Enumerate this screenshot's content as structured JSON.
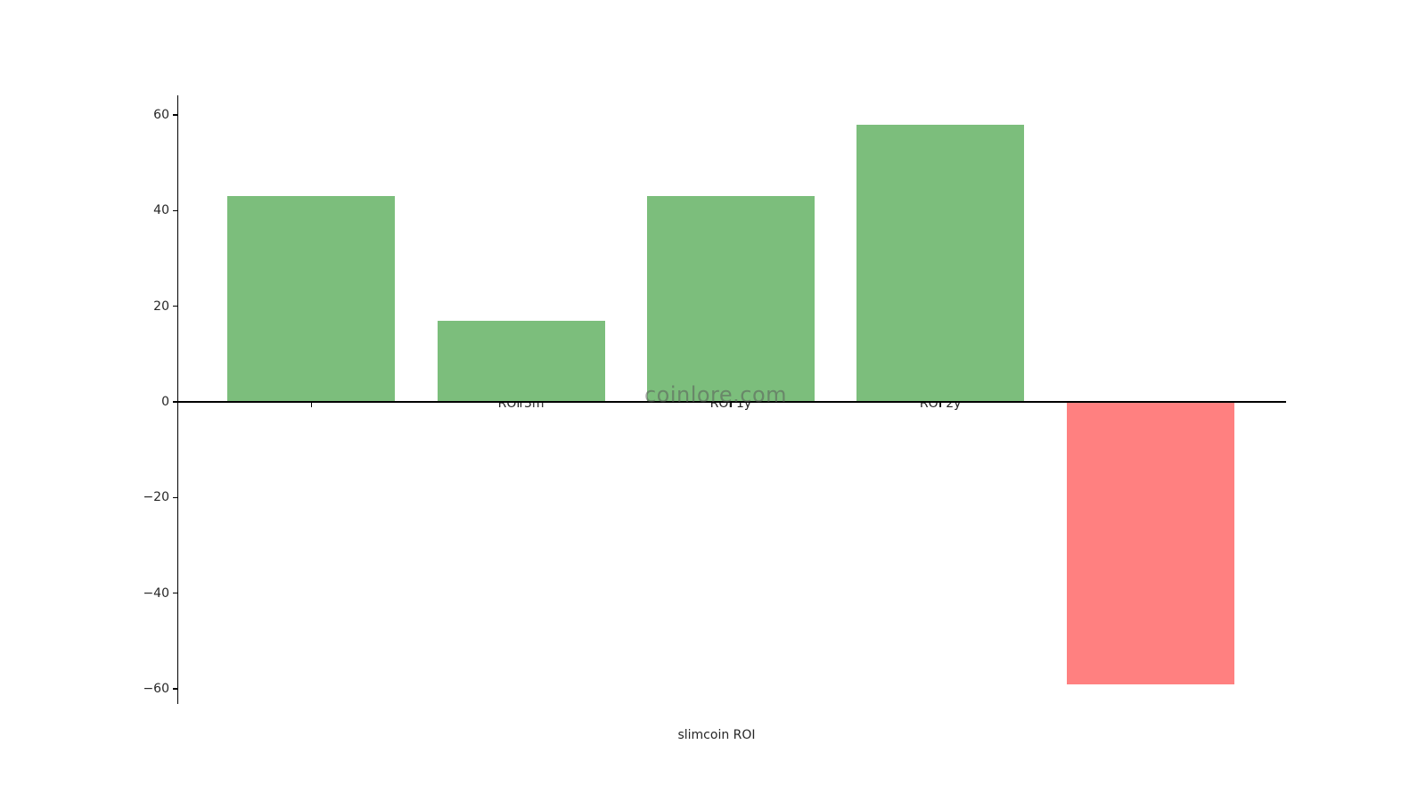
{
  "page": {
    "background": "#ffffff"
  },
  "watermark": {
    "text": "coinlore.com"
  },
  "chart_data": {
    "type": "bar",
    "title": "slimcoin ROI",
    "xlabel": "slimcoin ROI",
    "ylabel": "",
    "categories": [
      "",
      "ROI 3m",
      "ROI 1y",
      "ROI 2y",
      ""
    ],
    "values": [
      43,
      17,
      43,
      58,
      -59
    ],
    "y_ticks": [
      60,
      40,
      20,
      0,
      -20,
      -40,
      -60
    ],
    "y_tick_labels": [
      "60",
      "40",
      "20",
      "0",
      "−20",
      "−40",
      "−60"
    ],
    "ylim": [
      -63,
      64
    ],
    "grid": false,
    "legend": null,
    "positive_color": "#7cbe7c",
    "negative_color": "#ff8080",
    "axis_color": "#000000",
    "text_color": "#262626",
    "watermark_color": "#8a8a8a"
  }
}
